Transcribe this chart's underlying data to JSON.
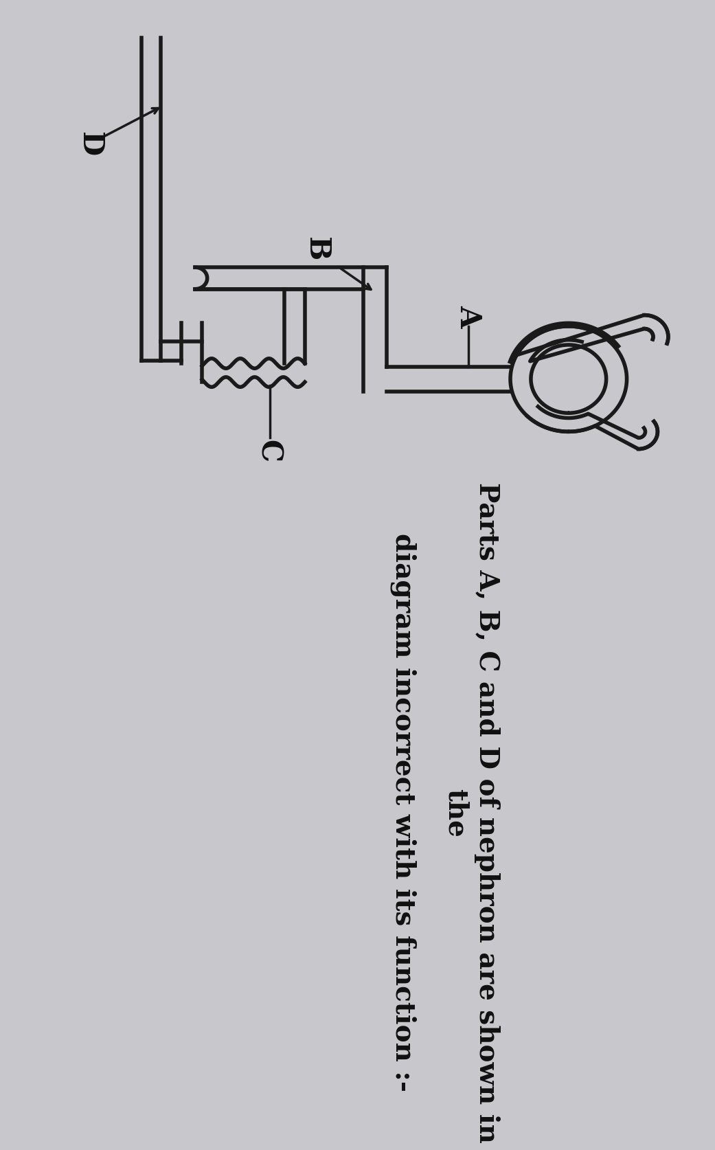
{
  "bg_color": "#c8c8cc",
  "line_color": "#1a1a1a",
  "text_color": "#111111",
  "title_line1": "Parts A, B, C and D of nephron are shown in the",
  "title_line2": "diagram incorrect with its function :-",
  "label_A": "A",
  "label_B": "B",
  "label_C": "C",
  "label_D": "D",
  "font_size_title": 28,
  "font_size_label": 30,
  "lw_main": 4.0,
  "fig_w": 16.77,
  "fig_h": 10.24
}
